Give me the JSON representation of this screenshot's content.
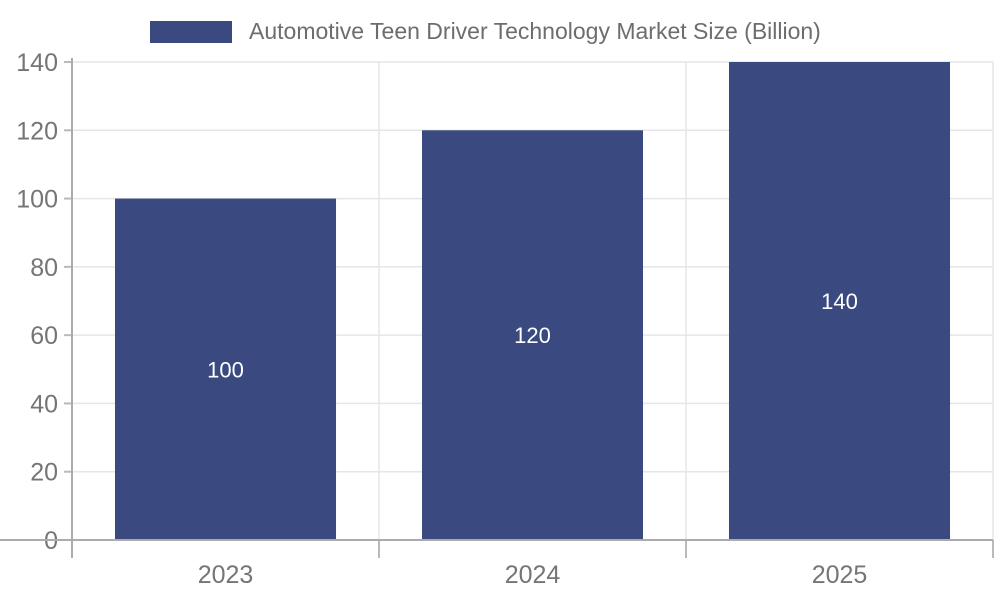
{
  "legend": {
    "label": "Automotive Teen Driver Technology Market Size (Billion)"
  },
  "chart_data": {
    "type": "bar",
    "title": "Automotive Teen Driver Technology Market Size (Billion)",
    "categories": [
      "2023",
      "2024",
      "2025"
    ],
    "values": [
      100,
      120,
      140
    ],
    "xlabel": "",
    "ylabel": "",
    "ylim": [
      0,
      140
    ],
    "ytick_step": 20,
    "grid": true,
    "legend_position": "top",
    "colors": {
      "bar": "#3a4a80",
      "grid": "#e6e6e6",
      "axis": "#ababab",
      "tick": "#b9b9c0",
      "tick_label": "#757575",
      "value_label": "#ffffff",
      "legend_text": "#6d6d6d"
    }
  }
}
